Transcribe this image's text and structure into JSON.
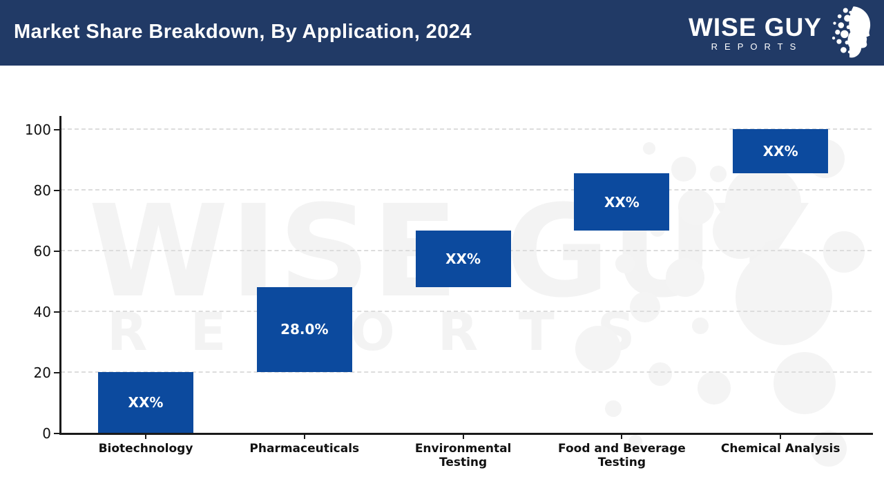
{
  "header": {
    "title": "Market Share Breakdown, By Application, 2024",
    "logo": {
      "line1": "WISE GUY",
      "line2": "REPORTS"
    }
  },
  "watermark": {
    "line1": "WISE GUY",
    "line2": "REPORTS"
  },
  "colors": {
    "header_bg": "#213a66",
    "header_text": "#ffffff",
    "bar": "#0c4a9e",
    "bar_label": "#ffffff",
    "grid": "#dcdcdc",
    "axis": "#1a1a1a",
    "tick_text": "#111111",
    "watermark": "#f3f3f3"
  },
  "chart_data": {
    "type": "bar",
    "subtype": "waterfall",
    "title": "Market Share Breakdown, By Application, 2024",
    "categories": [
      "Biotechnology",
      "Pharmaceuticals",
      "Environmental Testing",
      "Food and Beverage Testing",
      "Chemical Analysis"
    ],
    "category_lines": [
      [
        "Biotechnology"
      ],
      [
        "Pharmaceuticals"
      ],
      [
        "Environmental",
        "Testing"
      ],
      [
        "Food and Beverage",
        "Testing"
      ],
      [
        "Chemical Analysis"
      ]
    ],
    "segments": [
      {
        "category": "Biotechnology",
        "start": 0,
        "end": 20,
        "value": 20,
        "label": "XX%"
      },
      {
        "category": "Pharmaceuticals",
        "start": 20,
        "end": 48,
        "value": 28,
        "label": "28.0%"
      },
      {
        "category": "Environmental Testing",
        "start": 48,
        "end": 66.5,
        "value": 18.5,
        "label": "XX%"
      },
      {
        "category": "Food and Beverage Testing",
        "start": 66.5,
        "end": 85.5,
        "value": 19,
        "label": "XX%"
      },
      {
        "category": "Chemical Analysis",
        "start": 85.5,
        "end": 100,
        "value": 14.5,
        "label": "XX%"
      }
    ],
    "xlabel": "",
    "ylabel": "",
    "ylim": [
      0,
      100
    ],
    "yticks": [
      0,
      20,
      40,
      60,
      80,
      100
    ],
    "grid": "horizontal-dashed",
    "legend": "none"
  }
}
